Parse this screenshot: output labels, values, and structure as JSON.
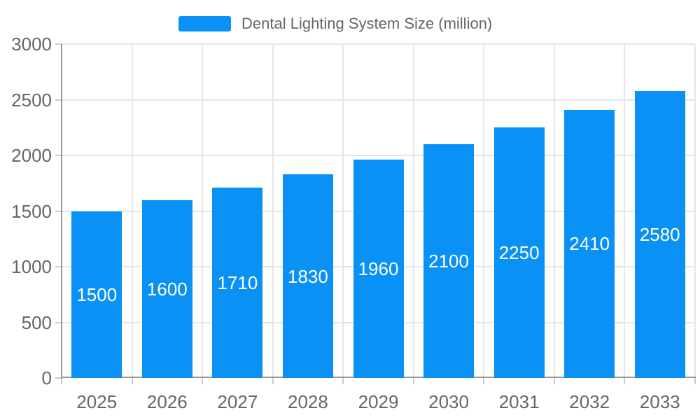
{
  "legend": {
    "label": "Dental Lighting System Size (million)"
  },
  "chart_data": {
    "type": "bar",
    "title": "",
    "categories": [
      "2025",
      "2026",
      "2027",
      "2028",
      "2029",
      "2030",
      "2031",
      "2032",
      "2033"
    ],
    "series": [
      {
        "name": "Dental Lighting System Size (million)",
        "values": [
          1500,
          1600,
          1710,
          1830,
          1960,
          2100,
          2250,
          2410,
          2580
        ],
        "color": "#0a91f5"
      }
    ],
    "xlabel": "",
    "ylabel": "",
    "ylim": [
      0,
      3000
    ],
    "y_ticks": [
      0,
      500,
      1000,
      1500,
      2000,
      2500,
      3000
    ],
    "grid": true,
    "legend_position": "top",
    "value_labels_shown": true,
    "colors": {
      "bar": "#0a91f5",
      "grid_line": "#e6e6e6",
      "axis_line": "#999999",
      "tick_line": "#cccccc",
      "axis_text": "#666666",
      "legend_text": "#666666",
      "value_text": "#ffffff",
      "background": "#ffffff"
    }
  }
}
